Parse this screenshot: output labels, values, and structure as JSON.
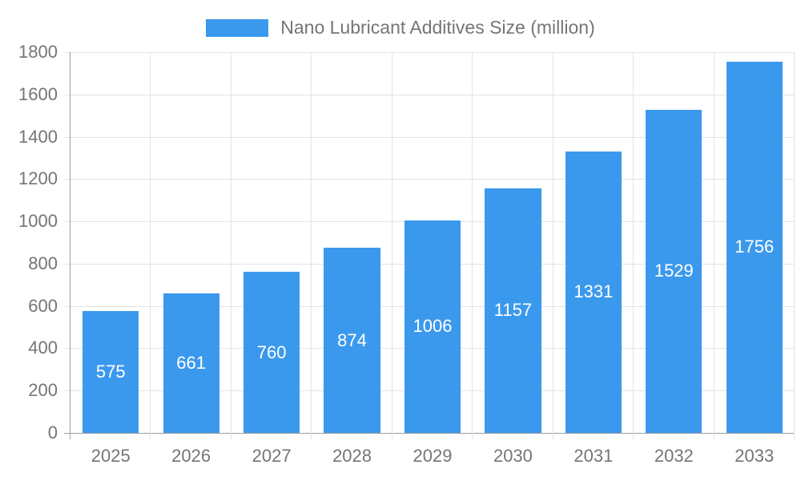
{
  "chart_data": {
    "type": "bar",
    "title": "Nano Lubricant Additives Size (million)",
    "categories": [
      "2025",
      "2026",
      "2027",
      "2028",
      "2029",
      "2030",
      "2031",
      "2032",
      "2033"
    ],
    "values": [
      575,
      661,
      760,
      874,
      1006,
      1157,
      1331,
      1529,
      1756
    ],
    "xlabel": "",
    "ylabel": "",
    "ylim": [
      0,
      1800
    ],
    "ytick_step": 200,
    "grid": "on",
    "legend_position": "top-center",
    "value_labels": "inside-center",
    "colors": {
      "bar": "#3B99ED",
      "value_label": "#ffffff",
      "axis_label": "#757575",
      "gridline": "#e3e3e3",
      "axis_line": "#9e9e9e",
      "background": "#ffffff"
    }
  }
}
